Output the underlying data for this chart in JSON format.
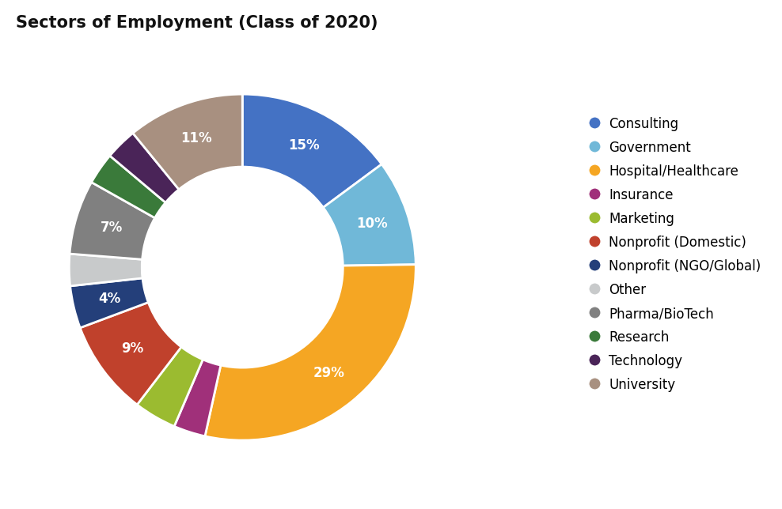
{
  "title": "Sectors of Employment (Class of 2020)",
  "labels": [
    "Consulting",
    "Government",
    "Hospital/Healthcare",
    "Insurance",
    "Marketing",
    "Nonprofit (Domestic)",
    "Nonprofit (NGO/Global)",
    "Other",
    "Pharma/BioTech",
    "Research",
    "Technology",
    "University"
  ],
  "values": [
    15,
    10,
    29,
    3,
    4,
    9,
    4,
    3,
    7,
    3,
    3,
    11
  ],
  "colors": [
    "#4472C4",
    "#70B8D8",
    "#F5A623",
    "#A0307A",
    "#9BBB30",
    "#C0412C",
    "#243F7A",
    "#C8CACB",
    "#808080",
    "#3A7A3A",
    "#4A2458",
    "#A89080"
  ],
  "pct_labels": [
    "15%",
    "10%",
    "29%",
    "",
    "",
    "9%",
    "4%",
    "",
    "7%",
    "",
    "",
    "11%"
  ],
  "title_fontsize": 15,
  "label_fontsize": 12,
  "legend_fontsize": 12,
  "background_color": "#ffffff"
}
